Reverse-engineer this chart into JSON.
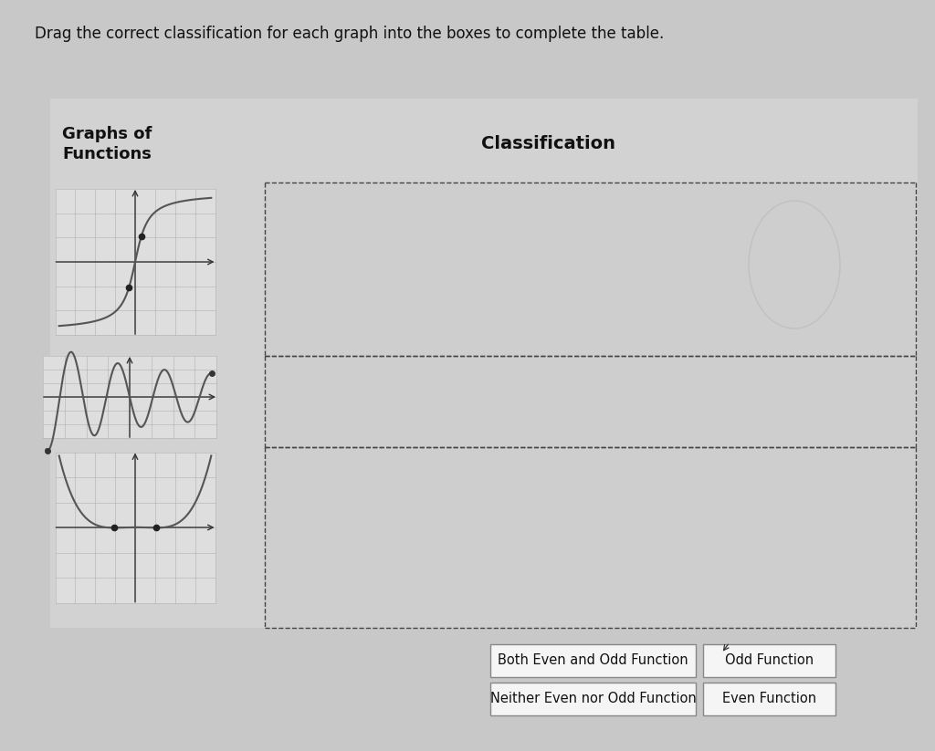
{
  "title": "Drag the correct classification for each graph into the boxes to complete the table.",
  "title_fontsize": 12,
  "col1_header": "Graphs of\nFunctions",
  "col2_header": "Classification",
  "bg_color": "#c8c8c8",
  "table_bg": "#d4d4d4",
  "graph_panel_bg": "#e0e0e0",
  "class_box_bg": "#d8d8d8",
  "dashed_color": "#444444",
  "curve_color": "#555555",
  "grid_color": "#b0b0b0",
  "axis_color": "#333333",
  "button_bg": "#f5f5f5",
  "button_border": "#888888",
  "button_text": "#111111",
  "oval_color": "#aaaaaa",
  "buttons": [
    {
      "label": "Both Even and Odd Function",
      "col": 0,
      "row": 0
    },
    {
      "label": "Odd Function",
      "col": 1,
      "row": 0
    },
    {
      "label": "Neither Even nor Odd Function",
      "col": 0,
      "row": 1
    },
    {
      "label": "Even Function",
      "col": 1,
      "row": 1
    }
  ]
}
